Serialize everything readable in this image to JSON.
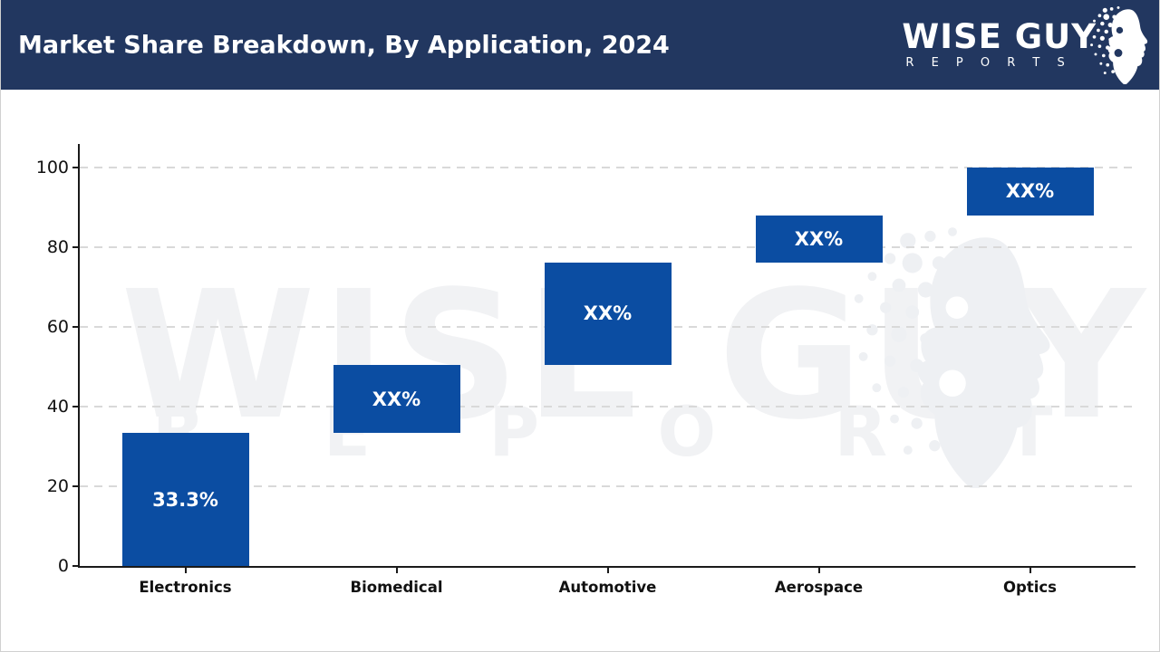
{
  "header": {
    "title": "Market Share Breakdown, By Application, 2024",
    "logo": {
      "line1": "WISE GUY",
      "line2": "R E P O R T S"
    }
  },
  "watermark": {
    "line1": "WISE GUY",
    "line2": "R E P O R T S"
  },
  "colors": {
    "header_bg": "#223760",
    "bar": "#0b4da2",
    "bar_label": "#ffffff",
    "grid": "#d9d9d9",
    "axis": "#1a1a1a",
    "watermark": "#f1f2f4"
  },
  "chart_data": {
    "type": "bar",
    "subtype": "waterfall",
    "title": "Market Share Breakdown, By Application, 2024",
    "categories": [
      "Electronics",
      "Biomedical",
      "Automotive",
      "Aerospace",
      "Optics"
    ],
    "bars": [
      {
        "category": "Electronics",
        "start": 0,
        "end": 33.3,
        "label": "33.3%"
      },
      {
        "category": "Biomedical",
        "start": 33.3,
        "end": 50.5,
        "label": "XX%"
      },
      {
        "category": "Automotive",
        "start": 50.5,
        "end": 76.2,
        "label": "XX%"
      },
      {
        "category": "Aerospace",
        "start": 76.2,
        "end": 87.9,
        "label": "XX%"
      },
      {
        "category": "Optics",
        "start": 88.0,
        "end": 100,
        "label": "XX%"
      }
    ],
    "y_ticks": [
      0,
      20,
      40,
      60,
      80,
      100
    ],
    "ylim": [
      0,
      106
    ],
    "xlabel": "",
    "ylabel": "",
    "grid": "horizontal-dashed",
    "legend": "none"
  }
}
